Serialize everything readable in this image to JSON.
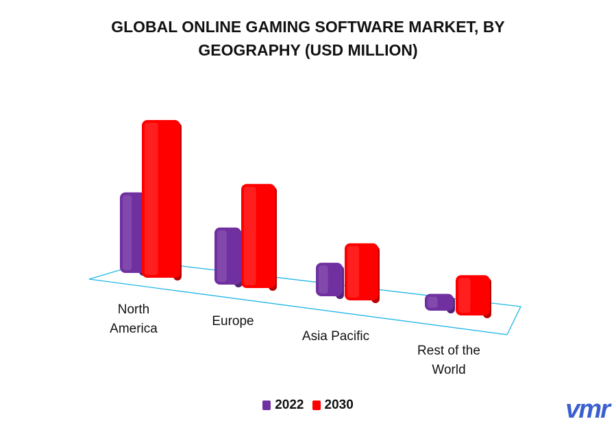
{
  "chart_data": {
    "type": "bar3d",
    "title": "GLOBAL ONLINE GAMING SOFTWARE MARKET, BY GEOGRAPHY (USD MILLION)",
    "categories": [
      "North America",
      "Europe",
      "Asia Pacific",
      "Rest of the World"
    ],
    "series": [
      {
        "name": "2022",
        "color": "#7030a0",
        "values": [
          120,
          85,
          50,
          25
        ]
      },
      {
        "name": "2030",
        "color": "#ff0000",
        "values": [
          235,
          155,
          85,
          60
        ]
      }
    ],
    "legend": "bottom"
  },
  "logo": "vmr"
}
